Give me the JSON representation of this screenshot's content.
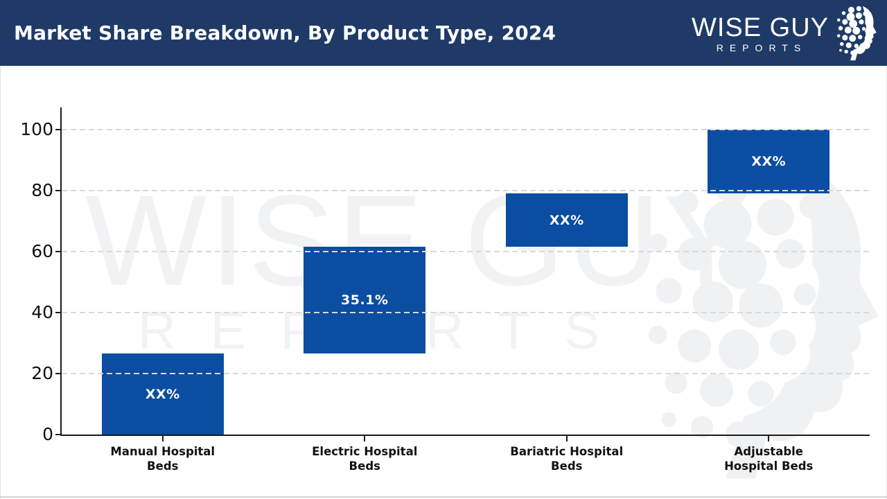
{
  "header": {
    "title": "Market Share Breakdown, By Product Type, 2024"
  },
  "logo": {
    "wordmark": "WISE GUY",
    "sub": "REPORTS"
  },
  "watermark": {
    "wordmark": "WISE GUY",
    "sub": "REPORTS"
  },
  "colors": {
    "header_bg": "#1f3a66",
    "bar_fill": "#0b4da1",
    "grid": "#d9d9d9",
    "axis": "#1a1a1a",
    "watermark": "#f1f2f4",
    "title_text": "#ffffff",
    "bar_label_text": "#ffffff"
  },
  "chart_data": {
    "type": "bar",
    "subtype": "waterfall",
    "title": "Market Share Breakdown, By Product Type, 2024",
    "categories": [
      "Manual Hospital Beds",
      "Electric Hospital Beds",
      "Bariatric Hospital Beds",
      "Adjustable Hospital Beds"
    ],
    "category_label_lines": [
      [
        "Manual Hospital",
        "Beds"
      ],
      [
        "Electric Hospital",
        "Beds"
      ],
      [
        "Bariatric Hospital",
        "Beds"
      ],
      [
        "Adjustable",
        "Hospital Beds"
      ]
    ],
    "series": [
      {
        "name": "Market Share %",
        "segments": [
          {
            "category": "Manual Hospital Beds",
            "start": 0,
            "end": 26.5,
            "value_label": "XX%"
          },
          {
            "category": "Electric Hospital Beds",
            "start": 26.5,
            "end": 61.6,
            "value_label": "35.1%"
          },
          {
            "category": "Bariatric Hospital Beds",
            "start": 61.6,
            "end": 79.1,
            "value_label": "XX%"
          },
          {
            "category": "Adjustable Hospital Beds",
            "start": 79.1,
            "end": 100,
            "value_label": "XX%"
          }
        ]
      }
    ],
    "yticks": [
      0,
      20,
      40,
      60,
      80,
      100
    ],
    "ylim": [
      0,
      107.3
    ],
    "xlabel": "",
    "ylabel": "",
    "grid": "horizontal-dashed",
    "grid_above_bars": true,
    "legend": "none"
  }
}
